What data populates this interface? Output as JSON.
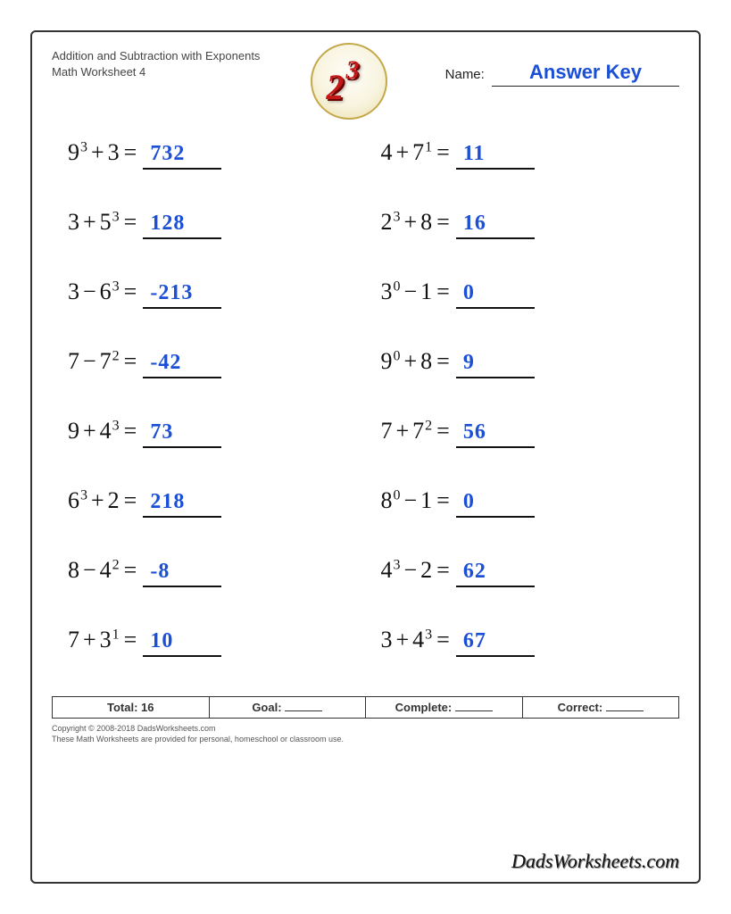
{
  "colors": {
    "answer": "#1a4fd6",
    "text": "#111111",
    "border": "#333333",
    "logo_fill": "#c21818",
    "logo_shadow": "#6b0000",
    "logo_ring": "#c4a84a",
    "background": "#ffffff"
  },
  "typography": {
    "body_font": "Arial",
    "math_font": "Times New Roman",
    "math_fontsize_pt": 20,
    "answer_fontsize_pt": 18,
    "title_fontsize_pt": 10,
    "brand_font": "Brush Script MT"
  },
  "header": {
    "title_line1": "Addition and Subtraction with Exponents",
    "title_line2": "Math Worksheet 4",
    "logo_base": "2",
    "logo_exp": "3",
    "name_label": "Name:",
    "name_value": "Answer Key"
  },
  "problems": [
    {
      "left": {
        "a": "9",
        "ae": "3",
        "op": "+",
        "b": "3",
        "be": "",
        "ans": "732"
      },
      "right": {
        "a": "4",
        "ae": "",
        "op": "+",
        "b": "7",
        "be": "1",
        "ans": "11"
      }
    },
    {
      "left": {
        "a": "3",
        "ae": "",
        "op": "+",
        "b": "5",
        "be": "3",
        "ans": "128"
      },
      "right": {
        "a": "2",
        "ae": "3",
        "op": "+",
        "b": "8",
        "be": "",
        "ans": "16"
      }
    },
    {
      "left": {
        "a": "3",
        "ae": "",
        "op": "−",
        "b": "6",
        "be": "3",
        "ans": "-213"
      },
      "right": {
        "a": "3",
        "ae": "0",
        "op": "−",
        "b": "1",
        "be": "",
        "ans": "0"
      }
    },
    {
      "left": {
        "a": "7",
        "ae": "",
        "op": "−",
        "b": "7",
        "be": "2",
        "ans": "-42"
      },
      "right": {
        "a": "9",
        "ae": "0",
        "op": "+",
        "b": "8",
        "be": "",
        "ans": "9"
      }
    },
    {
      "left": {
        "a": "9",
        "ae": "",
        "op": "+",
        "b": "4",
        "be": "3",
        "ans": "73"
      },
      "right": {
        "a": "7",
        "ae": "",
        "op": "+",
        "b": "7",
        "be": "2",
        "ans": "56"
      }
    },
    {
      "left": {
        "a": "6",
        "ae": "3",
        "op": "+",
        "b": "2",
        "be": "",
        "ans": "218"
      },
      "right": {
        "a": "8",
        "ae": "0",
        "op": "−",
        "b": "1",
        "be": "",
        "ans": "0"
      }
    },
    {
      "left": {
        "a": "8",
        "ae": "",
        "op": "−",
        "b": "4",
        "be": "2",
        "ans": "-8"
      },
      "right": {
        "a": "4",
        "ae": "3",
        "op": "−",
        "b": "2",
        "be": "",
        "ans": "62"
      }
    },
    {
      "left": {
        "a": "7",
        "ae": "",
        "op": "+",
        "b": "3",
        "be": "1",
        "ans": "10"
      },
      "right": {
        "a": "3",
        "ae": "",
        "op": "+",
        "b": "4",
        "be": "3",
        "ans": "67"
      }
    }
  ],
  "footer": {
    "cells": {
      "total_label": "Total:",
      "total_value": "16",
      "goal_label": "Goal:",
      "complete_label": "Complete:",
      "correct_label": "Correct:"
    },
    "copyright_line1": "Copyright © 2008-2018 DadsWorksheets.com",
    "copyright_line2": "These Math Worksheets are provided for personal, homeschool or classroom use.",
    "brand": "DadsWorksheets.com"
  }
}
